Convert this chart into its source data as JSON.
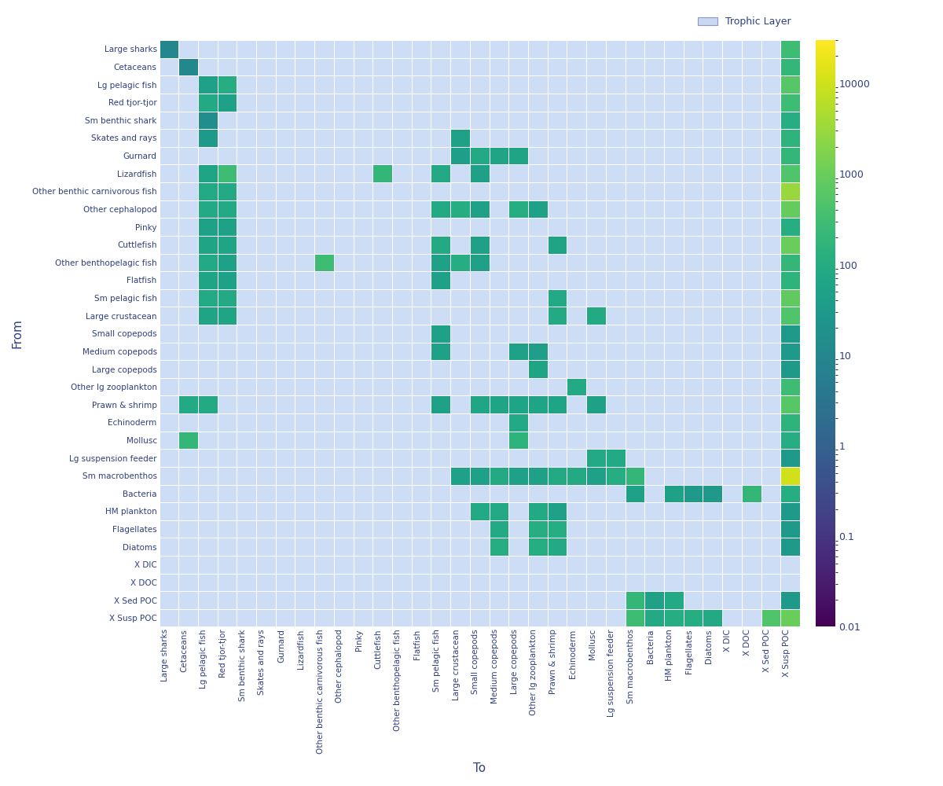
{
  "row_labels": [
    "Large sharks",
    "Cetaceans",
    "Lg pelagic fish",
    "Red tjor-tjor",
    "Sm benthic shark",
    "Skates and rays",
    "Gurnard",
    "Lizardfish",
    "Other benthic carnivorous fish",
    "Other cephalopod",
    "Pinky",
    "Cuttlefish",
    "Other benthopelagic fish",
    "Flatfish",
    "Sm pelagic fish",
    "Large crustacean",
    "Small copepods",
    "Medium copepods",
    "Large copepods",
    "Other lg zooplankton",
    "Prawn & shrimp",
    "Echinoderm",
    "Mollusc",
    "Lg suspension feeder",
    "Sm macrobenthos",
    "Bacteria",
    "HM plankton",
    "Flagellates",
    "Diatoms",
    "X DIC",
    "X DOC",
    "X Sed POC",
    "X Susp POC"
  ],
  "col_labels": [
    "Large sharks",
    "Cetaceans",
    "Lg pelagic fish",
    "Red tjor-tjor",
    "Sm benthic shark",
    "Skates and rays",
    "Gurnard",
    "Lizardfish",
    "Other benthic carnivorous fish",
    "Other cephalopod",
    "Pinky",
    "Cuttlefish",
    "Other benthopelagic fish",
    "Flatfish",
    "Sm pelagic fish",
    "Large crustacean",
    "Small copepods",
    "Medium copepods",
    "Large copepods",
    "Other lg zooplankton",
    "Prawn & shrimp",
    "Echinoderm",
    "Mollusc",
    "Lg suspension feeder",
    "Sm macrobenthos",
    "Bacteria",
    "HM plankton",
    "Flagellates",
    "Diatoms",
    "X DIC",
    "X DOC",
    "X Sed POC",
    "X Susp POC"
  ],
  "trophic_layer_nrows": 29,
  "trophic_layer_ncols": 29,
  "background_color": "#ccddf5",
  "nan_color": "#ccddf5",
  "colormap": "viridis",
  "vmin": 0.01,
  "vmax": 30000,
  "xlabel": "To",
  "ylabel": "From",
  "legend_label": "Trophic Layer",
  "colorbar_ticks": [
    0.01,
    0.1,
    1,
    10,
    100,
    1000,
    10000
  ],
  "colorbar_labels": [
    "0.01",
    "0.1",
    "1",
    "10",
    "100",
    "1000",
    "10000"
  ],
  "data": [
    [
      10,
      0,
      0,
      0,
      0,
      0,
      0,
      0,
      0,
      0,
      0,
      0,
      0,
      0,
      0,
      0,
      0,
      0,
      0,
      0,
      0,
      0,
      0,
      0,
      0,
      0,
      0,
      0,
      0,
      0,
      0,
      0,
      300
    ],
    [
      0,
      10,
      0,
      0,
      0,
      0,
      0,
      0,
      0,
      0,
      0,
      0,
      0,
      0,
      0,
      0,
      0,
      0,
      0,
      0,
      0,
      0,
      0,
      0,
      0,
      0,
      0,
      0,
      0,
      0,
      0,
      0,
      200
    ],
    [
      0,
      0,
      50,
      100,
      0,
      0,
      0,
      0,
      0,
      0,
      0,
      0,
      0,
      0,
      0,
      0,
      0,
      0,
      0,
      0,
      0,
      0,
      0,
      0,
      0,
      0,
      0,
      0,
      0,
      0,
      0,
      0,
      600
    ],
    [
      0,
      0,
      80,
      50,
      0,
      0,
      0,
      0,
      0,
      0,
      0,
      0,
      0,
      0,
      0,
      0,
      0,
      0,
      0,
      0,
      0,
      0,
      0,
      0,
      0,
      0,
      0,
      0,
      0,
      0,
      0,
      0,
      300
    ],
    [
      0,
      0,
      15,
      0,
      0,
      0,
      0,
      0,
      0,
      0,
      0,
      0,
      0,
      0,
      0,
      0,
      0,
      0,
      0,
      0,
      0,
      0,
      0,
      0,
      0,
      0,
      0,
      0,
      0,
      0,
      0,
      0,
      100
    ],
    [
      0,
      0,
      30,
      0,
      0,
      0,
      0,
      0,
      0,
      0,
      0,
      0,
      0,
      0,
      0,
      50,
      0,
      0,
      0,
      0,
      0,
      0,
      0,
      0,
      0,
      0,
      0,
      0,
      0,
      0,
      0,
      0,
      150
    ],
    [
      0,
      0,
      0,
      0,
      0,
      0,
      0,
      0,
      0,
      0,
      0,
      0,
      0,
      0,
      0,
      40,
      80,
      60,
      60,
      0,
      0,
      0,
      0,
      0,
      0,
      0,
      0,
      0,
      0,
      0,
      0,
      0,
      200
    ],
    [
      0,
      0,
      60,
      300,
      0,
      0,
      0,
      0,
      0,
      0,
      0,
      200,
      0,
      0,
      80,
      0,
      50,
      0,
      0,
      0,
      0,
      0,
      0,
      0,
      0,
      0,
      0,
      0,
      0,
      0,
      0,
      0,
      500
    ],
    [
      0,
      0,
      80,
      80,
      0,
      0,
      0,
      0,
      0,
      0,
      0,
      0,
      0,
      0,
      0,
      0,
      0,
      0,
      0,
      0,
      0,
      0,
      0,
      0,
      0,
      0,
      0,
      0,
      0,
      0,
      0,
      0,
      3000
    ],
    [
      0,
      0,
      80,
      80,
      0,
      0,
      0,
      0,
      0,
      0,
      0,
      0,
      0,
      0,
      80,
      100,
      50,
      0,
      100,
      50,
      0,
      0,
      0,
      0,
      0,
      0,
      0,
      0,
      0,
      0,
      0,
      0,
      900
    ],
    [
      0,
      0,
      50,
      50,
      0,
      0,
      0,
      0,
      0,
      0,
      0,
      0,
      0,
      0,
      0,
      0,
      0,
      0,
      0,
      0,
      0,
      0,
      0,
      0,
      0,
      0,
      0,
      0,
      0,
      0,
      0,
      0,
      100
    ],
    [
      0,
      0,
      60,
      60,
      0,
      0,
      0,
      0,
      0,
      0,
      0,
      0,
      0,
      0,
      80,
      0,
      50,
      0,
      0,
      0,
      60,
      0,
      0,
      0,
      0,
      0,
      0,
      0,
      0,
      0,
      0,
      0,
      1000
    ],
    [
      0,
      0,
      80,
      50,
      0,
      0,
      0,
      0,
      300,
      0,
      0,
      0,
      0,
      0,
      50,
      100,
      50,
      0,
      0,
      0,
      0,
      0,
      0,
      0,
      0,
      0,
      0,
      0,
      0,
      0,
      0,
      0,
      200
    ],
    [
      0,
      0,
      60,
      50,
      0,
      0,
      0,
      0,
      0,
      0,
      0,
      0,
      0,
      0,
      50,
      0,
      0,
      0,
      0,
      0,
      0,
      0,
      0,
      0,
      0,
      0,
      0,
      0,
      0,
      0,
      0,
      0,
      150
    ],
    [
      0,
      0,
      80,
      80,
      0,
      0,
      0,
      0,
      0,
      0,
      0,
      0,
      0,
      0,
      0,
      0,
      0,
      0,
      0,
      0,
      80,
      0,
      0,
      0,
      0,
      0,
      0,
      0,
      0,
      0,
      0,
      0,
      800
    ],
    [
      0,
      0,
      60,
      60,
      0,
      0,
      0,
      0,
      0,
      0,
      0,
      0,
      0,
      0,
      0,
      0,
      0,
      0,
      0,
      0,
      80,
      0,
      80,
      0,
      0,
      0,
      0,
      0,
      0,
      0,
      0,
      0,
      500
    ],
    [
      0,
      0,
      0,
      0,
      0,
      0,
      0,
      0,
      0,
      0,
      0,
      0,
      0,
      0,
      50,
      0,
      0,
      0,
      0,
      0,
      0,
      0,
      0,
      0,
      0,
      0,
      0,
      0,
      0,
      0,
      0,
      0,
      30
    ],
    [
      0,
      0,
      0,
      0,
      0,
      0,
      0,
      0,
      0,
      0,
      0,
      0,
      0,
      0,
      50,
      0,
      0,
      0,
      50,
      40,
      0,
      0,
      0,
      0,
      0,
      0,
      0,
      0,
      0,
      0,
      0,
      0,
      30
    ],
    [
      0,
      0,
      0,
      0,
      0,
      0,
      0,
      0,
      0,
      0,
      0,
      0,
      0,
      0,
      0,
      0,
      0,
      0,
      0,
      60,
      0,
      0,
      0,
      0,
      0,
      0,
      0,
      0,
      0,
      0,
      0,
      0,
      30
    ],
    [
      0,
      0,
      0,
      0,
      0,
      0,
      0,
      0,
      0,
      0,
      0,
      0,
      0,
      0,
      0,
      0,
      0,
      0,
      0,
      0,
      0,
      80,
      0,
      0,
      0,
      0,
      0,
      0,
      0,
      0,
      0,
      0,
      300
    ],
    [
      0,
      80,
      80,
      0,
      0,
      0,
      0,
      0,
      0,
      0,
      0,
      0,
      0,
      0,
      50,
      0,
      70,
      60,
      60,
      60,
      60,
      0,
      50,
      0,
      0,
      0,
      0,
      0,
      0,
      0,
      0,
      0,
      600
    ],
    [
      0,
      0,
      0,
      0,
      0,
      0,
      0,
      0,
      0,
      0,
      0,
      0,
      0,
      0,
      0,
      0,
      0,
      0,
      80,
      0,
      0,
      0,
      0,
      0,
      0,
      0,
      0,
      0,
      0,
      0,
      0,
      0,
      150
    ],
    [
      0,
      200,
      0,
      0,
      0,
      0,
      0,
      0,
      0,
      0,
      0,
      0,
      0,
      0,
      0,
      0,
      0,
      0,
      150,
      0,
      0,
      0,
      0,
      0,
      0,
      0,
      0,
      0,
      0,
      0,
      0,
      0,
      100
    ],
    [
      0,
      0,
      0,
      0,
      0,
      0,
      0,
      0,
      0,
      0,
      0,
      0,
      0,
      0,
      0,
      0,
      0,
      0,
      0,
      0,
      0,
      0,
      80,
      80,
      0,
      0,
      0,
      0,
      0,
      0,
      0,
      0,
      30
    ],
    [
      0,
      0,
      0,
      0,
      0,
      0,
      0,
      0,
      0,
      0,
      0,
      0,
      0,
      0,
      0,
      50,
      50,
      80,
      50,
      50,
      80,
      80,
      50,
      100,
      200,
      0,
      0,
      0,
      0,
      0,
      0,
      0,
      10000
    ],
    [
      0,
      0,
      0,
      0,
      0,
      0,
      0,
      0,
      0,
      0,
      0,
      0,
      0,
      0,
      0,
      0,
      0,
      0,
      0,
      0,
      0,
      0,
      0,
      0,
      50,
      0,
      50,
      30,
      30,
      0,
      200,
      0,
      100
    ],
    [
      0,
      0,
      0,
      0,
      0,
      0,
      0,
      0,
      0,
      0,
      0,
      0,
      0,
      0,
      0,
      0,
      80,
      80,
      0,
      80,
      50,
      0,
      0,
      0,
      0,
      0,
      0,
      0,
      0,
      0,
      0,
      0,
      30
    ],
    [
      0,
      0,
      0,
      0,
      0,
      0,
      0,
      0,
      0,
      0,
      0,
      0,
      0,
      0,
      0,
      0,
      0,
      80,
      0,
      100,
      100,
      0,
      0,
      0,
      0,
      0,
      0,
      0,
      0,
      0,
      0,
      0,
      30
    ],
    [
      0,
      0,
      0,
      0,
      0,
      0,
      0,
      0,
      0,
      0,
      0,
      0,
      0,
      0,
      0,
      0,
      0,
      100,
      0,
      100,
      80,
      0,
      0,
      0,
      0,
      0,
      0,
      0,
      0,
      0,
      0,
      0,
      30
    ],
    [
      0,
      0,
      0,
      0,
      0,
      0,
      0,
      0,
      0,
      0,
      0,
      0,
      0,
      0,
      0,
      0,
      0,
      0,
      0,
      0,
      0,
      0,
      0,
      0,
      0,
      0,
      0,
      0,
      0,
      0,
      0,
      0,
      0
    ],
    [
      0,
      0,
      0,
      0,
      0,
      0,
      0,
      0,
      0,
      0,
      0,
      0,
      0,
      0,
      0,
      0,
      0,
      0,
      0,
      0,
      0,
      0,
      0,
      0,
      0,
      0,
      0,
      0,
      0,
      0,
      0,
      0,
      0
    ],
    [
      0,
      0,
      0,
      0,
      0,
      0,
      0,
      0,
      0,
      0,
      0,
      0,
      0,
      0,
      0,
      0,
      0,
      0,
      0,
      0,
      0,
      0,
      0,
      0,
      200,
      50,
      80,
      0,
      0,
      0,
      0,
      0,
      30
    ],
    [
      0,
      0,
      0,
      0,
      0,
      0,
      0,
      0,
      0,
      0,
      0,
      0,
      0,
      0,
      0,
      0,
      0,
      0,
      0,
      0,
      0,
      0,
      0,
      0,
      300,
      80,
      100,
      100,
      80,
      0,
      0,
      500,
      1000
    ]
  ]
}
